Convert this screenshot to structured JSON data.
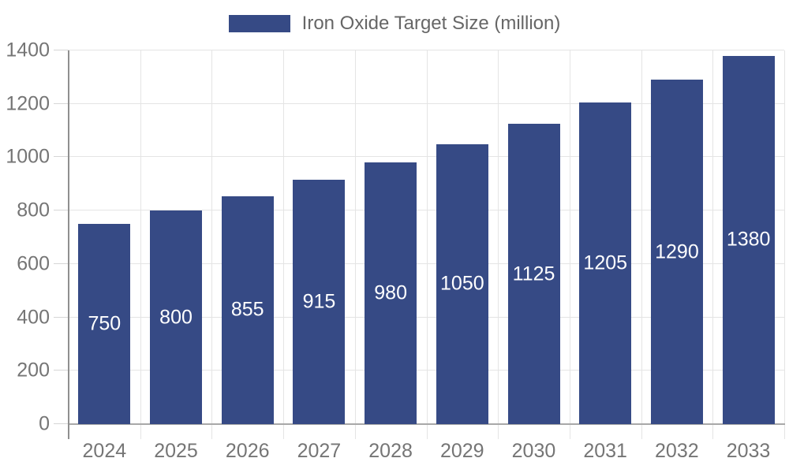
{
  "legend": {
    "label": "Iron Oxide Target Size (million)"
  },
  "chart_data": {
    "type": "bar",
    "title": "",
    "xlabel": "",
    "ylabel": "",
    "categories": [
      "2024",
      "2025",
      "2026",
      "2027",
      "2028",
      "2029",
      "2030",
      "2031",
      "2032",
      "2033"
    ],
    "series": [
      {
        "name": "Iron Oxide Target Size (million)",
        "values": [
          750,
          800,
          855,
          915,
          980,
          1050,
          1125,
          1205,
          1290,
          1380
        ]
      }
    ],
    "ylim": [
      0,
      1400
    ],
    "yticks": [
      0,
      200,
      400,
      600,
      800,
      1000,
      1200,
      1400
    ],
    "grid": true,
    "legend_position": "top-center",
    "value_label_position": "inside-center",
    "colors": {
      "bar": "#364a85",
      "grid": "#e4e4e4",
      "tick": "#d6d6d6",
      "axis_line": "#8f8f8f",
      "baseline": "#a8a8a8",
      "axis_text": "#757575",
      "legend_text": "#666666",
      "value_label_text": "#ffffff",
      "background": "#ffffff"
    }
  }
}
